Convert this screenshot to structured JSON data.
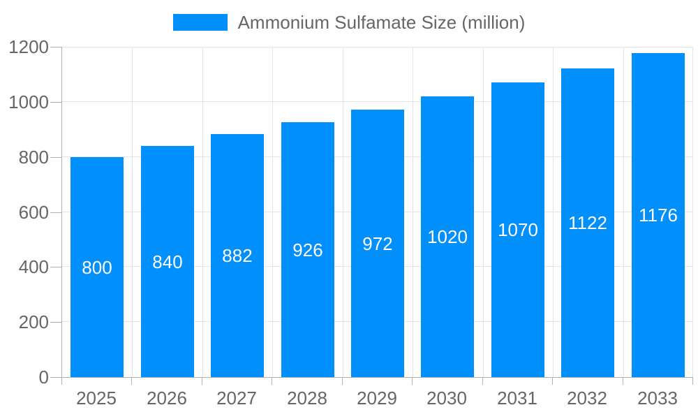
{
  "legend": {
    "label": "Ammonium Sulfamate Size (million)"
  },
  "chart_data": {
    "type": "bar",
    "title": "",
    "xlabel": "",
    "ylabel": "",
    "categories": [
      "2025",
      "2026",
      "2027",
      "2028",
      "2029",
      "2030",
      "2031",
      "2032",
      "2033"
    ],
    "values": [
      800,
      840,
      882,
      926,
      972,
      1020,
      1070,
      1122,
      1176
    ],
    "series_name": "Ammonium Sulfamate Size (million)",
    "ylim": [
      0,
      1200
    ],
    "yticks": [
      0,
      200,
      400,
      600,
      800,
      1000,
      1200
    ],
    "grid": true,
    "legend_position": "top",
    "colors": {
      "bar": "#008FFB",
      "grid": "#e5e5e5",
      "axis": "#b0b0b0",
      "axis_text": "#666666",
      "data_label": "#ffffff",
      "background": "#ffffff"
    }
  }
}
